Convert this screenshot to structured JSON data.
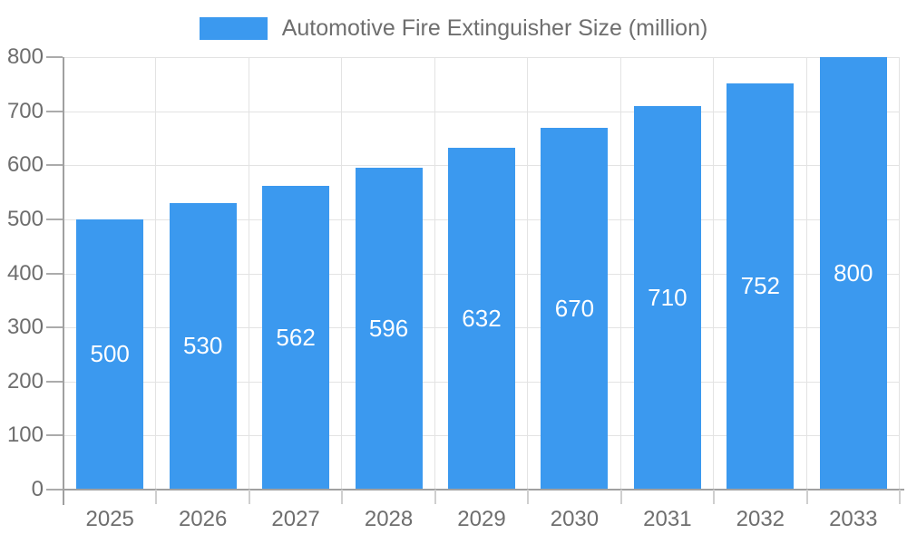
{
  "legend": {
    "label": "Automotive Fire Extinguisher Size (million)"
  },
  "chart_data": {
    "type": "bar",
    "title": "Automotive Fire Extinguisher Size (million)",
    "categories": [
      "2025",
      "2026",
      "2027",
      "2028",
      "2029",
      "2030",
      "2031",
      "2032",
      "2033"
    ],
    "values": [
      500,
      530,
      562,
      596,
      632,
      670,
      710,
      752,
      800
    ],
    "xlabel": "",
    "ylabel": "",
    "ylim": [
      0,
      800
    ],
    "ytick_step": 100,
    "yticks": [
      0,
      100,
      200,
      300,
      400,
      500,
      600,
      700,
      800
    ],
    "grid": true,
    "legend_position": "top",
    "bar_color": "#3b99ef",
    "bar_label_color": "#ffffff",
    "axis_text_color": "#6e6e6e",
    "gridline_color": "#e3e3e3",
    "axis_line_color": "#a0a0a0"
  }
}
